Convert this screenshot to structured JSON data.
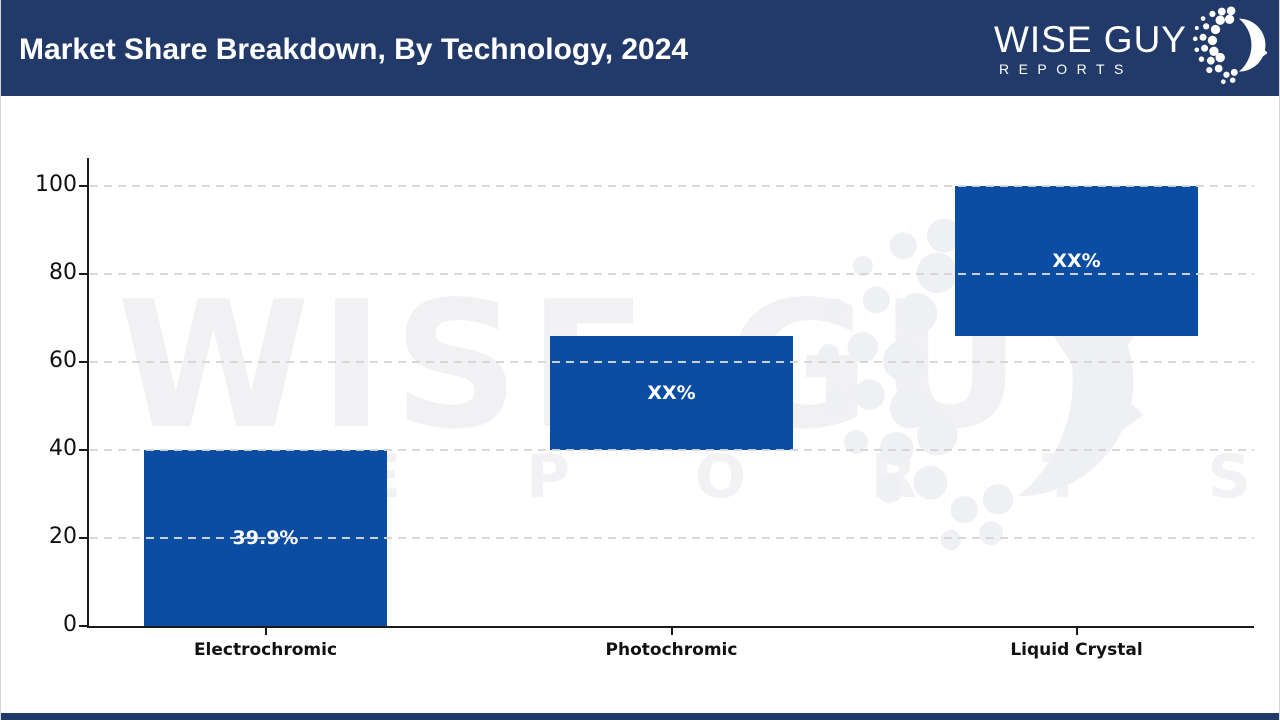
{
  "header": {
    "title": "Market Share Breakdown, By Technology, 2024",
    "logo": {
      "name": "WISE GUY",
      "sub": "REPORTS"
    }
  },
  "watermark": {
    "name": "WISE GUY",
    "sub": "R E P O R T S"
  },
  "chart_data": {
    "type": "bar",
    "variant": "waterfall",
    "title": "Market Share Breakdown, By Technology, 2024",
    "categories": [
      "Electrochromic",
      "Photochromic",
      "Liquid Crystal"
    ],
    "bars": [
      {
        "category": "Electrochromic",
        "start": 0,
        "end": 39.9,
        "value": 39.9,
        "label": "39.9%"
      },
      {
        "category": "Photochromic",
        "start": 39.9,
        "end": 65.9,
        "value": 26.0,
        "label": "XX%"
      },
      {
        "category": "Liquid Crystal",
        "start": 65.9,
        "end": 100,
        "value": 34.1,
        "label": "XX%"
      }
    ],
    "xlabel": "",
    "ylabel": "",
    "yticks": [
      0,
      20,
      40,
      60,
      80,
      100
    ],
    "ylim": [
      0,
      107
    ],
    "grid": "horizontal-dashed",
    "legend": null
  },
  "colors": {
    "header_bg": "#223a6a",
    "footer_bg": "#223a6a",
    "bar": "#0b4da2",
    "bar_label": "#ffffff",
    "grid": "#d6d6d6",
    "axis": "#1a1a1a",
    "watermark": "#f1f1f3"
  }
}
